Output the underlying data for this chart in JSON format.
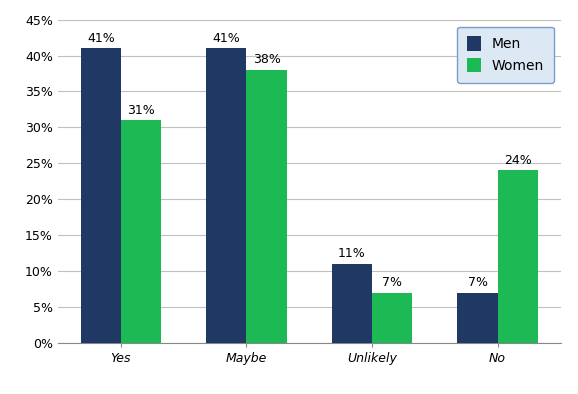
{
  "categories": [
    "Yes",
    "Maybe",
    "Unlikely",
    "No"
  ],
  "men_values": [
    41,
    41,
    11,
    7
  ],
  "women_values": [
    31,
    38,
    7,
    24
  ],
  "men_color": "#1F3864",
  "women_color": "#1DB954",
  "ylim": [
    0,
    45
  ],
  "yticks": [
    0,
    5,
    10,
    15,
    20,
    25,
    30,
    35,
    40,
    45
  ],
  "legend_labels": [
    "Men",
    "Women"
  ],
  "bar_width": 0.32,
  "label_fontsize": 9,
  "tick_fontsize": 9,
  "legend_fontsize": 10,
  "background_color": "#FFFFFF",
  "grid_color": "#C0C0C0",
  "legend_facecolor": "#DCE9F5",
  "legend_edgecolor": "#7B9CC4"
}
